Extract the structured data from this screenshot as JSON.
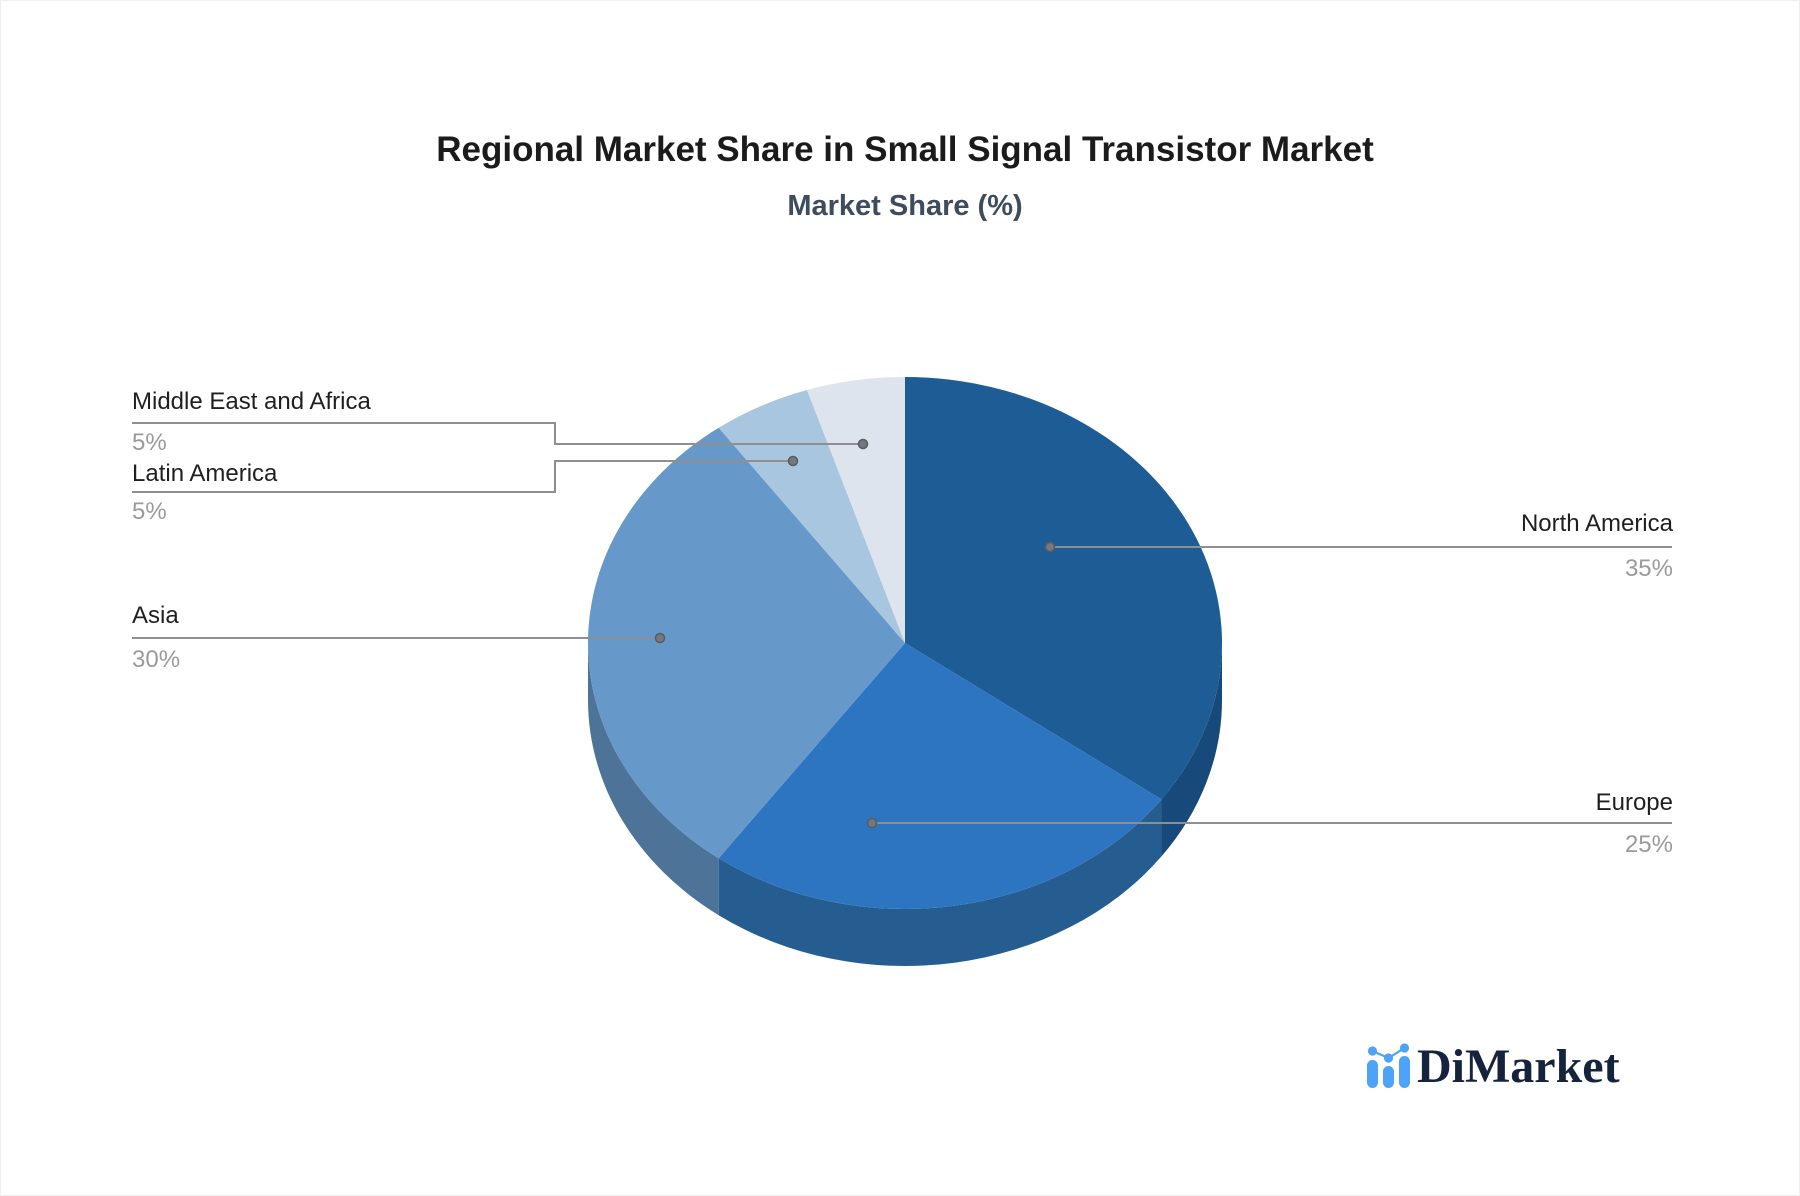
{
  "header": {
    "title": "Regional Market Share in Small Signal Transistor Market",
    "subtitle": "Market Share (%)"
  },
  "chart_data": {
    "type": "pie",
    "style": "3d-pie",
    "title": "Regional Market Share in Small Signal Transistor Market",
    "subtitle": "Market Share (%)",
    "unit": "%",
    "start_angle_deg": -90,
    "direction": "clockwise",
    "legend_position": "callout-labels",
    "slices": [
      {
        "name": "North America",
        "value": 35,
        "pct_label": "35%",
        "color": "#1e5c96",
        "side_color": "#17497a"
      },
      {
        "name": "Europe",
        "value": 25,
        "pct_label": "25%",
        "color": "#2e75c1",
        "side_color": "#255d90"
      },
      {
        "name": "Asia",
        "value": 30,
        "pct_label": "30%",
        "color": "#6698ca",
        "side_color": "#4d7498"
      },
      {
        "name": "Latin America",
        "value": 5,
        "pct_label": "5%",
        "color": "#a9c6e0",
        "side_color": "#8ba3ba"
      },
      {
        "name": "Middle East and Africa",
        "value": 5,
        "pct_label": "5%",
        "color": "#dde4ee",
        "side_color": "#b6bcc7"
      }
    ]
  },
  "leader": {
    "line_color": "#8f8f8f",
    "dot_fill": "#75797e",
    "dot_stroke": "#585c60"
  },
  "text_colors": {
    "title": "#1b1b1b",
    "subtitle": "#3e4c5e",
    "slice_name": "#1f1f1f",
    "slice_pct": "#9a9a9a"
  },
  "logo": {
    "text": "DiMarket",
    "text_color": "#15233c",
    "icon": "bar-line-chart-icon",
    "icon_color": "#4da3f7"
  }
}
